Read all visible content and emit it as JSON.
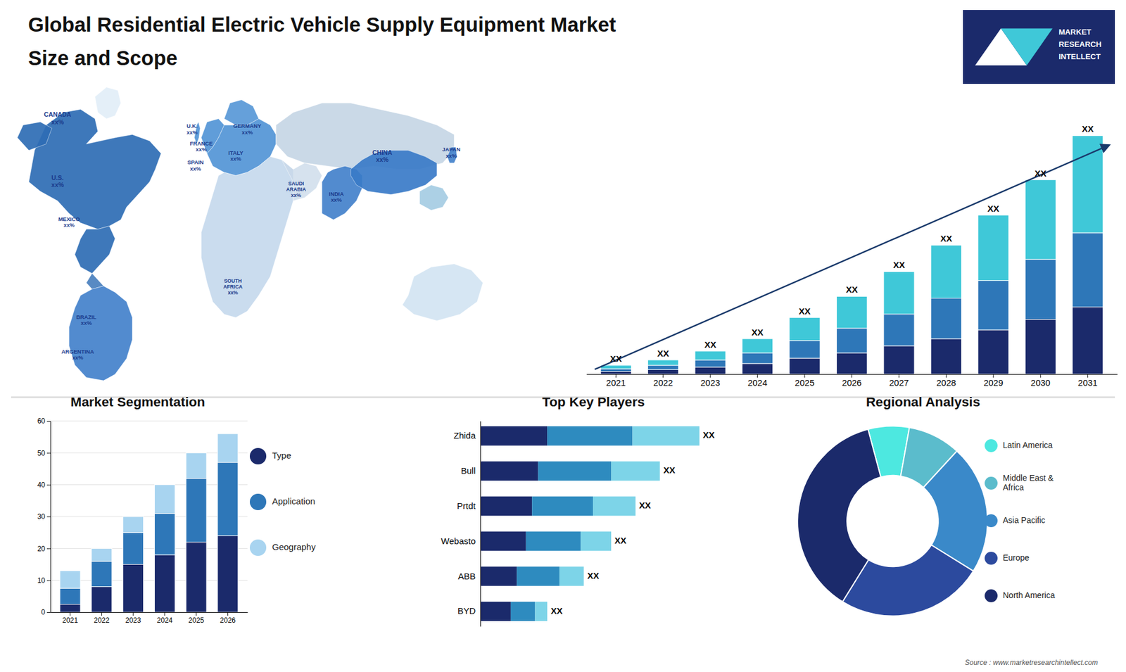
{
  "title": "Global Residential Electric Vehicle Supply Equipment Market",
  "subtitle": "Size and Scope",
  "annotations": [
    "MARKET",
    "RESEARCH",
    "INTELLECT",
    "Source : www.marketresearchintellect.com"
  ],
  "chart_data": [
    {
      "type": "map",
      "annotations": [
        "CANADA\nxx%",
        "U.S.\nxx%",
        "MEXICO\nxx%",
        "BRAZIL\nxx%",
        "ARGENTINA\nxx%",
        "U.K.\nxx%",
        "FRANCE\nxx%",
        "SPAIN\nxx%",
        "GERMANY\nxx%",
        "ITALY\nxx%",
        "SAUDI\nARABIA\nxx%",
        "SOUTH\nAFRICA\nxx%",
        "CHINA\nxx%",
        "INDIA\nxx%",
        "JAPAN\nxx%"
      ]
    },
    {
      "type": "bar",
      "stacked": true,
      "categories": [
        "2021",
        "2022",
        "2023",
        "2024",
        "2025",
        "2026",
        "2027",
        "2028",
        "2029",
        "2030",
        "2031"
      ],
      "series": [
        {
          "color": "#1b2a6b",
          "values": [
            1.5,
            2.5,
            4,
            6,
            9,
            12,
            16,
            20,
            25,
            31,
            38
          ]
        },
        {
          "color": "#2e77b8",
          "values": [
            1.5,
            2.5,
            4,
            6,
            10,
            14,
            18,
            23,
            28,
            34,
            42
          ]
        },
        {
          "color": "#3fc8d8",
          "values": [
            2.0,
            3.0,
            5,
            8,
            13,
            18,
            24,
            30,
            37,
            45,
            55
          ]
        }
      ],
      "ylim": [
        0,
        162
      ],
      "grid": false,
      "tick_labels": "x",
      "annotations": [
        "XX",
        "XX",
        "XX",
        "XX",
        "XX",
        "XX",
        "XX",
        "XX",
        "XX",
        "XX",
        "XX"
      ]
    },
    {
      "type": "bar",
      "stacked": true,
      "title": "Market Segmentation",
      "categories": [
        "2021",
        "2022",
        "2023",
        "2024",
        "2025",
        "2026"
      ],
      "series": [
        {
          "name": "Type",
          "color": "#1b2a6b",
          "values": [
            2.5,
            8,
            15,
            18,
            22,
            24
          ]
        },
        {
          "name": "Application",
          "color": "#2e77b8",
          "values": [
            5,
            8,
            10,
            13,
            20,
            23
          ]
        },
        {
          "name": "Geography",
          "color": "#a8d4f0",
          "values": [
            5.5,
            4,
            5,
            9,
            8,
            9
          ]
        }
      ],
      "ylim": [
        0,
        60
      ],
      "yticks": [
        0,
        10,
        20,
        30,
        40,
        50,
        60
      ],
      "grid": true,
      "legend": "right"
    },
    {
      "type": "bar",
      "orientation": "horizontal",
      "stacked": true,
      "title": "Top Key Players",
      "categories": [
        "Zhida",
        "Bull",
        "Prtdt",
        "Webasto",
        "ABB",
        "BYD"
      ],
      "series": [
        {
          "color": "#1b2a6b",
          "values": [
            0.22,
            0.19,
            0.17,
            0.15,
            0.12,
            0.1
          ]
        },
        {
          "color": "#2e8bbf",
          "values": [
            0.28,
            0.24,
            0.2,
            0.18,
            0.14,
            0.08
          ]
        },
        {
          "color": "#7dd4e8",
          "values": [
            0.22,
            0.16,
            0.14,
            0.1,
            0.08,
            0.04
          ]
        }
      ],
      "xlim": [
        0,
        0.9
      ],
      "grid": false,
      "tick_labels": "y",
      "annotations": [
        "XX",
        "XX",
        "XX",
        "XX",
        "XX",
        "XX"
      ]
    },
    {
      "type": "pie",
      "title": "Regional Analysis",
      "categories": [
        "Latin America",
        "Middle East &\nAfrica",
        "Asia Pacific",
        "Europe",
        "North America"
      ],
      "values": [
        7,
        9,
        22,
        25,
        37
      ],
      "colors": [
        "#4de8e0",
        "#5bbccc",
        "#3a89c9",
        "#2c4a9e",
        "#1b2a6b"
      ],
      "legend": "right"
    }
  ]
}
